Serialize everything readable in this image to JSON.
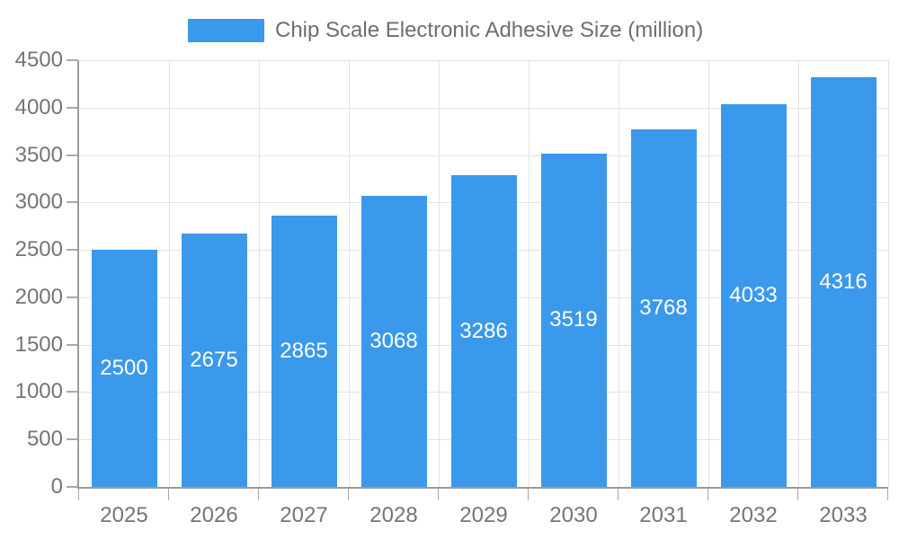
{
  "chart_data": {
    "type": "bar",
    "title": "Chip Scale Electronic Adhesive Size (million)",
    "categories": [
      "2025",
      "2026",
      "2027",
      "2028",
      "2029",
      "2030",
      "2031",
      "2032",
      "2033"
    ],
    "values": [
      2500,
      2675,
      2865,
      3068,
      3286,
      3519,
      3768,
      4033,
      4316
    ],
    "xlabel": "",
    "ylabel": "",
    "ylim": [
      0,
      4500
    ],
    "ytick_step": 500,
    "ytick_labels": [
      "0",
      "500",
      "1000",
      "1500",
      "2000",
      "2500",
      "3000",
      "3500",
      "4000",
      "4500"
    ],
    "grid": "horizontal-and-vertical",
    "legend_position": "top-center",
    "value_labels": "inside-center-white",
    "colors": {
      "bar_fill": "#3b99ec",
      "value_label": "#ffffff",
      "axis_text": "#757575",
      "legend_text": "#6e6e6e",
      "gridline": "#e3e3e3",
      "axis_line": "#9b9b9b",
      "tick": "#a8a8a8",
      "background": "#ffffff"
    }
  }
}
